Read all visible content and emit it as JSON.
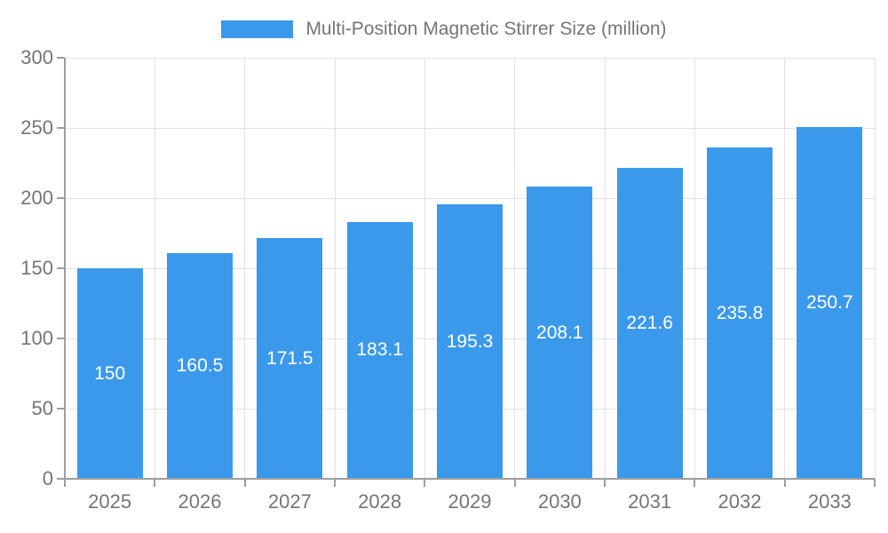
{
  "chart_data": {
    "type": "bar",
    "title": "Multi-Position Magnetic Stirrer Size (million)",
    "categories": [
      "2025",
      "2026",
      "2027",
      "2028",
      "2029",
      "2030",
      "2031",
      "2032",
      "2033"
    ],
    "values": [
      150,
      160.5,
      171.5,
      183.1,
      195.3,
      208.1,
      221.6,
      235.8,
      250.7
    ],
    "value_labels": [
      "150",
      "160.5",
      "171.5",
      "183.1",
      "195.3",
      "208.1",
      "221.6",
      "235.8",
      "250.7"
    ],
    "xlabel": "",
    "ylabel": "",
    "ylim": [
      0,
      300
    ],
    "yticks": [
      0,
      50,
      100,
      150,
      200,
      250,
      300
    ],
    "grid": true,
    "legend_position": "top",
    "colors": {
      "bar": "#3b99eb",
      "axis_line": "#9e9e9e",
      "gridline": "#e2e2e2",
      "axis_label_text": "#757575",
      "legend_text": "#757575",
      "value_label_text": "#ffffff",
      "background": "#ffffff"
    }
  }
}
